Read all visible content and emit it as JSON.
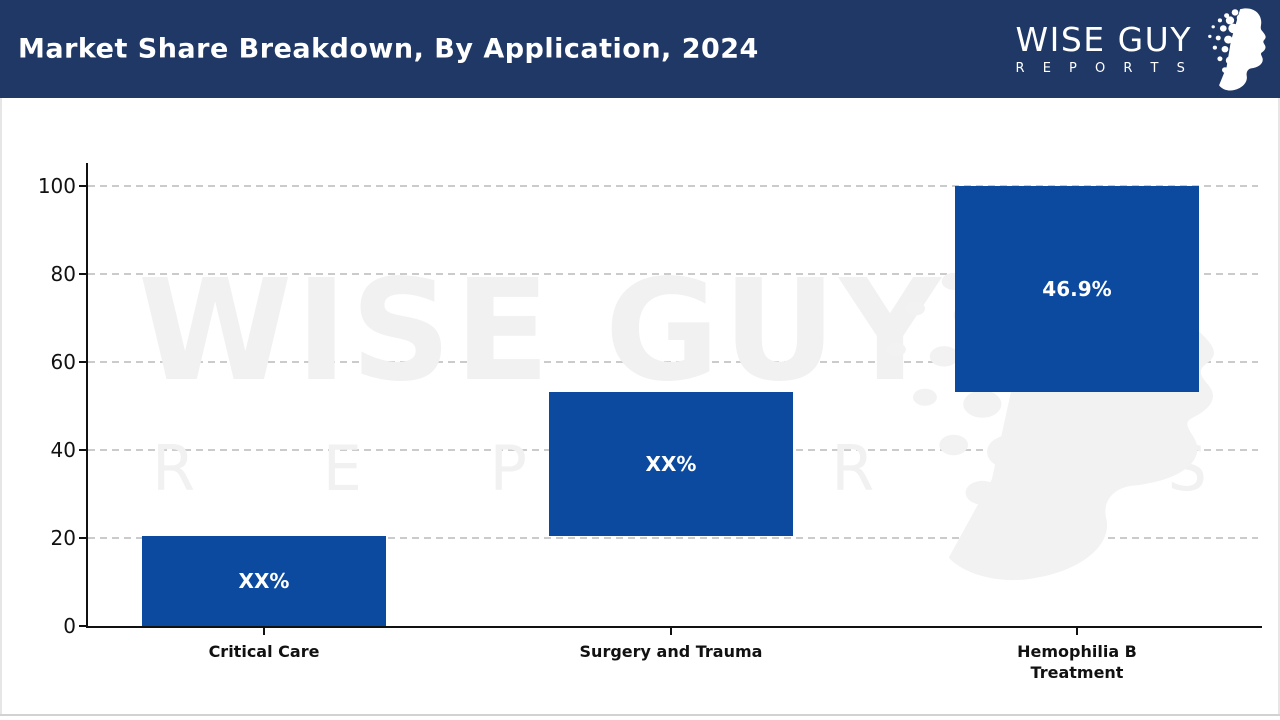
{
  "header": {
    "title": "Market Share Breakdown, By Application, 2024",
    "logo": {
      "name": "WISE GUY",
      "tagline": "R E P O R T S"
    }
  },
  "watermark": {
    "name": "WISE GUY",
    "tagline": "R E P O R T S"
  },
  "chart_data": {
    "type": "bar",
    "subtype": "waterfall",
    "title": "Market Share Breakdown, By Application, 2024",
    "xlabel": "",
    "ylabel": "",
    "ylim": [
      0,
      105
    ],
    "yticks": [
      0,
      20,
      40,
      60,
      80,
      100
    ],
    "grid": "horizontal-dashed",
    "legend": "none",
    "bar_color": "#0b4a9e",
    "categories": [
      "Critical Care",
      "Surgery and Trauma",
      "Hemophilia B\nTreatment"
    ],
    "segments": [
      {
        "category": "Critical Care",
        "start": 0,
        "end": 20.5,
        "label": "XX%"
      },
      {
        "category": "Surgery and Trauma",
        "start": 20.5,
        "end": 53.1,
        "label": "XX%"
      },
      {
        "category": "Hemophilia B Treatment",
        "start": 53.1,
        "end": 100,
        "label": "46.9%"
      }
    ]
  }
}
